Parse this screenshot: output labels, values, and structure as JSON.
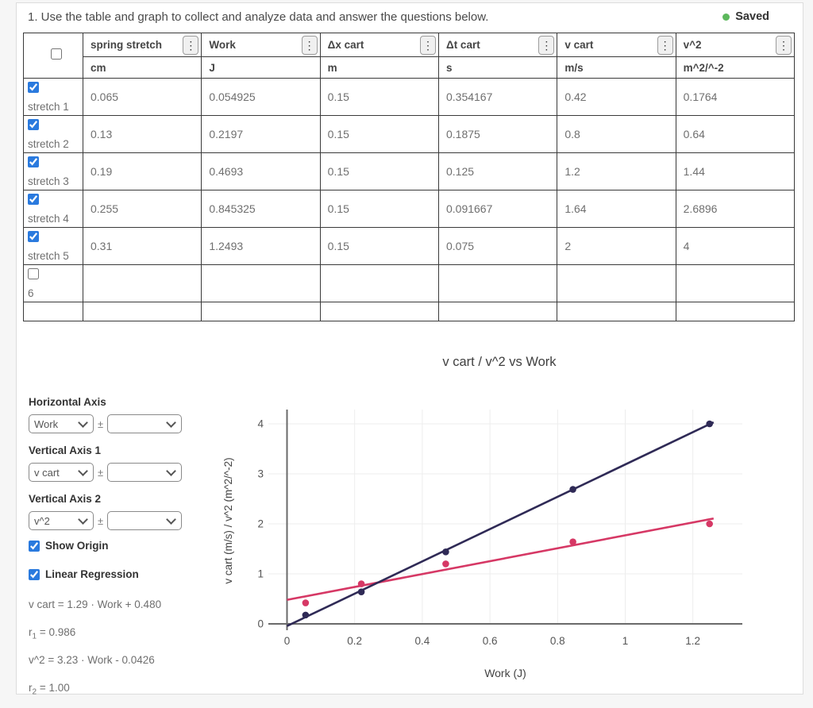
{
  "page": {
    "prompt": "1.  Use the table and graph to collect and analyze data and answer the questions below.",
    "saved_label": "Saved",
    "saved_color": "#5cb85c"
  },
  "table": {
    "columns": [
      {
        "name": "spring stretch",
        "unit": "cm"
      },
      {
        "name": "Work",
        "unit": "J"
      },
      {
        "name": "Δx cart",
        "unit": "m"
      },
      {
        "name": "Δt cart",
        "unit": "s"
      },
      {
        "name": "v cart",
        "unit": "m/s"
      },
      {
        "name": "v^2",
        "unit": "m^2/^-2"
      }
    ],
    "header_checkbox_checked": false,
    "rows": [
      {
        "label": "stretch 1",
        "checked": true,
        "values": [
          "0.065",
          "0.054925",
          "0.15",
          "0.354167",
          "0.42",
          "0.1764"
        ]
      },
      {
        "label": "stretch 2",
        "checked": true,
        "values": [
          "0.13",
          "0.2197",
          "0.15",
          "0.1875",
          "0.8",
          "0.64"
        ]
      },
      {
        "label": "stretch 3",
        "checked": true,
        "values": [
          "0.19",
          "0.4693",
          "0.15",
          "0.125",
          "1.2",
          "1.44"
        ]
      },
      {
        "label": "stretch 4",
        "checked": true,
        "values": [
          "0.255",
          "0.845325",
          "0.15",
          "0.091667",
          "1.64",
          "2.6896"
        ]
      },
      {
        "label": "stretch 5",
        "checked": true,
        "values": [
          "0.31",
          "1.2493",
          "0.15",
          "0.075",
          "2",
          "4"
        ]
      },
      {
        "label": "6",
        "checked": false,
        "values": [
          "",
          "",
          "",
          "",
          "",
          ""
        ]
      }
    ],
    "trailing_empty_row": true,
    "kebab_icon": "⋮"
  },
  "controls": {
    "pm": "±",
    "horizontal_axis": {
      "heading": "Horizontal Axis",
      "selected": "Work",
      "uncertainty_selected": ""
    },
    "vertical_axis_1": {
      "heading": "Vertical Axis 1",
      "selected": "v cart",
      "uncertainty_selected": ""
    },
    "vertical_axis_2": {
      "heading": "Vertical Axis 2",
      "selected": "v^2",
      "uncertainty_selected": ""
    },
    "show_origin": {
      "label": "Show Origin",
      "checked": true
    },
    "linear_regression": {
      "label": "Linear Regression",
      "checked": true
    },
    "regression": {
      "eq1": "v cart = 1.29 · Work + 0.480",
      "r1": {
        "base": "r",
        "sub": "1",
        "rest": " = 0.986"
      },
      "eq2": "v^2 = 3.23 · Work - 0.0426",
      "r2": {
        "base": "r",
        "sub": "2",
        "rest": " = 1.00"
      }
    }
  },
  "chart_data": {
    "type": "scatter",
    "title": "v cart / v^2 vs Work",
    "xlabel": "Work (J)",
    "ylabel": "v cart (m/s) / v^2 (m^2/^-2)",
    "xlim": [
      0,
      1.35
    ],
    "ylim": [
      -0.3,
      4.3
    ],
    "xticks": [
      0,
      0.2,
      0.4,
      0.6,
      0.8,
      1,
      1.2
    ],
    "yticks": [
      0,
      1,
      2,
      3,
      4
    ],
    "grid": true,
    "show_origin": true,
    "axis_color": "#6a6a6a",
    "grid_color": "#ededed",
    "series": [
      {
        "name": "v cart",
        "color": "#d63865",
        "points": [
          [
            0.054925,
            0.42
          ],
          [
            0.2197,
            0.8
          ],
          [
            0.4693,
            1.2
          ],
          [
            0.845325,
            1.64
          ],
          [
            1.2493,
            2
          ]
        ],
        "regression": {
          "slope": 1.29,
          "intercept": 0.48,
          "r": 0.986
        }
      },
      {
        "name": "v^2",
        "color": "#2f2a56",
        "points": [
          [
            0.054925,
            0.1764
          ],
          [
            0.2197,
            0.64
          ],
          [
            0.4693,
            1.44
          ],
          [
            0.845325,
            2.6896
          ],
          [
            1.2493,
            4
          ]
        ],
        "regression": {
          "slope": 3.23,
          "intercept": -0.0426,
          "r": 1.0
        }
      }
    ]
  }
}
